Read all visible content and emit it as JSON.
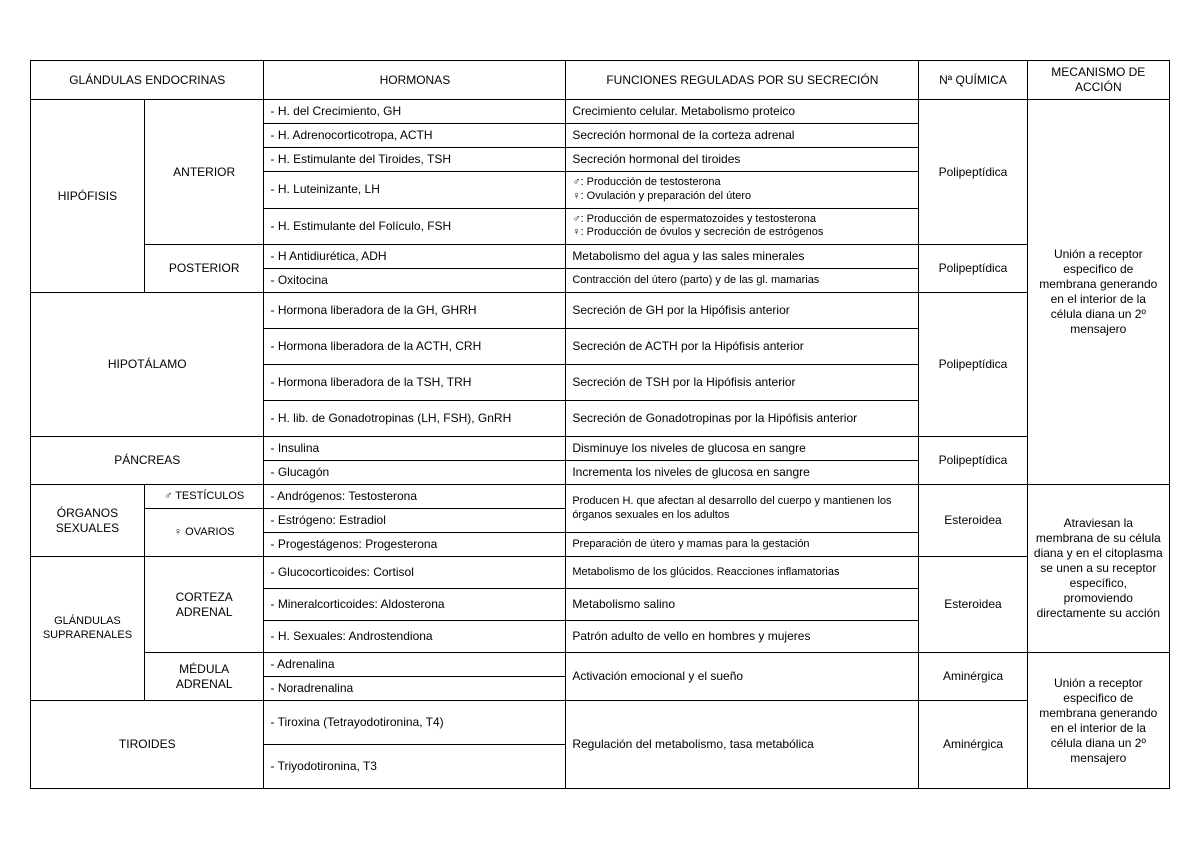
{
  "headers": {
    "glandulas": "GLÁNDULAS ENDOCRINAS",
    "hormonas": "HORMONAS",
    "funciones": "FUNCIONES REGULADAS POR SU SECRECIÓN",
    "quimica": "Nª QUÍMICA",
    "mecanismo": "MECANISMO DE ACCIÓN"
  },
  "glandulas": {
    "hipofisis": "HIPÓFISIS",
    "anterior": "ANTERIOR",
    "posterior": "POSTERIOR",
    "hipotalamo": "HIPOTÁLAMO",
    "pancreas": "PÁNCREAS",
    "organos_sexuales": "ÓRGANOS SEXUALES",
    "testiculos": "♂ TESTÍCULOS",
    "ovarios": "♀ OVARIOS",
    "suprarrenales": "GLÁNDULAS SUPRARENALES",
    "corteza": "CORTEZA ADRENAL",
    "medula": "MÉDULA ADRENAL",
    "tiroides": "TIROIDES"
  },
  "hormonas": {
    "gh": "- H. del Crecimiento, GH",
    "acth": "- H. Adrenocorticotropa, ACTH",
    "tsh": "- H. Estimulante del Tiroides, TSH",
    "lh": "- H. Luteinizante, LH",
    "fsh": "- H. Estimulante del Folículo, FSH",
    "adh": "- H Antidiurética, ADH",
    "oxitocina": "- Oxitocina",
    "ghrh": "- Hormona liberadora de la GH, GHRH",
    "crh": "- Hormona liberadora de la ACTH, CRH",
    "trh": "- Hormona liberadora de la TSH, TRH",
    "gnrh": "- H. lib. de Gonadotropinas (LH, FSH), GnRH",
    "insulina": "- Insulina",
    "glucagon": "- Glucagón",
    "testosterona": "- Andrógenos: Testosterona",
    "estradiol": "- Estrógeno: Estradiol",
    "progesterona": "- Progestágenos: Progesterona",
    "cortisol": "- Glucocorticoides: Cortisol",
    "aldosterona": "- Mineralcorticoides: Aldosterona",
    "androstendiona": "- H. Sexuales: Androstendiona",
    "adrenalina": "- Adrenalina",
    "noradrenalina": "- Noradrenalina",
    "t4": "- Tiroxina (Tetrayodotironina, T4)",
    "t3": "- Triyodotironina, T3"
  },
  "funciones": {
    "gh": "Crecimiento celular. Metabolismo proteico",
    "acth": "Secreción hormonal de la corteza adrenal",
    "tsh": "Secreción hormonal del tiroides",
    "lh": "♂: Producción de testosterona\n♀: Ovulación y preparación del útero",
    "fsh": "♂: Producción de espermatozoides y testosterona\n♀: Producción de óvulos y secreción de estrógenos",
    "adh": "Metabolismo del agua y las sales minerales",
    "oxitocina": "Contracción del útero (parto) y de las gl. mamarias",
    "ghrh": "Secreción de GH por la Hipófisis anterior",
    "crh": "Secreción de ACTH por la Hipófisis anterior",
    "trh": "Secreción de TSH por la Hipófisis anterior",
    "gnrh": "Secreción de Gonadotropinas por la Hipófisis anterior",
    "insulina": "Disminuye los niveles de glucosa en sangre",
    "glucagon": "Incrementa los niveles de glucosa en sangre",
    "sexuales": "Producen H. que afectan al desarrollo del cuerpo y mantienen los órganos sexuales en los adultos",
    "progesterona": "Preparación de útero y mamas para la gestación",
    "cortisol": "Metabolismo de los glúcidos. Reacciones inflamatorias",
    "aldosterona": "Metabolismo salino",
    "androstendiona": "Patrón adulto de vello en hombres y mujeres",
    "adrenal_medula": "Activación emocional y el sueño",
    "tiroides": "Regulación del metabolismo, tasa metabólica"
  },
  "quimica": {
    "polipeptidica": "Polipeptídica",
    "esteroidea": "Esteroidea",
    "aminergica": "Aminérgica"
  },
  "mecanismo": {
    "membrana": "Unión a receptor especifico de membrana generando en el interior de la célula diana un 2º mensajero",
    "citoplasma": "Atraviesan la membrana de su célula diana y en el citoplasma se unen a su receptor específico, promoviendo directamente su acción",
    "membrana2": "Unión a receptor especifico de membrana generando en el interior de la célula diana un 2º mensajero"
  }
}
